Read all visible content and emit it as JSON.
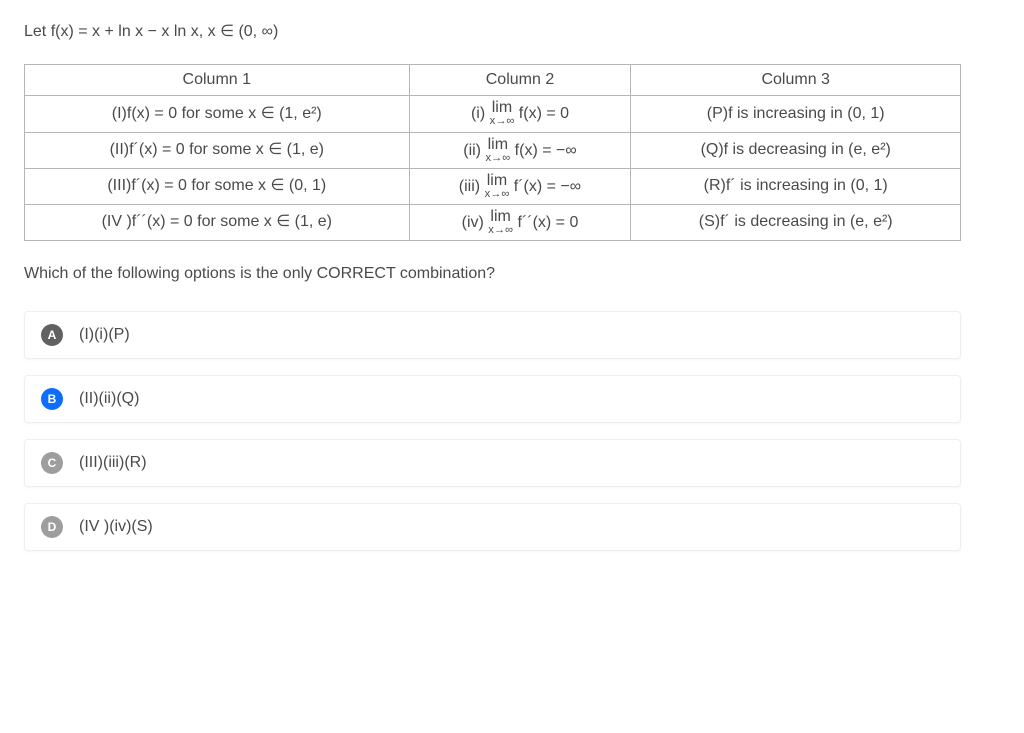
{
  "stem": "Let f(x) = x + ln x − x ln x,    x ∈ (0, ∞)",
  "table": {
    "headers": [
      "Column 1",
      "Column 2",
      "Column 3"
    ],
    "rows": [
      {
        "c1": "(I)f(x) = 0 for some x ∈ (1, e²)",
        "c2_html": "(i) <span class=\"limit\">lim<span class=\"under\">x→∞</span></span> f(x) = 0",
        "c3": "(P)f is increasing in (0, 1)"
      },
      {
        "c1": "(II)f´(x) = 0 for some x ∈ (1, e)",
        "c2_html": "(ii) <span class=\"limit\">lim<span class=\"under\">x→∞</span></span> f(x) = −∞",
        "c3": "(Q)f is decreasing in (e, e²)"
      },
      {
        "c1": "(III)f´(x) = 0 for some x ∈ (0, 1)",
        "c2_html": "(iii) <span class=\"limit\">lim<span class=\"under\">x→∞</span></span> f´(x) = −∞",
        "c3": "(R)f´ is increasing in (0, 1)"
      },
      {
        "c1": "(IV )f´´(x) = 0 for some x ∈ (1, e)",
        "c2_html": "(iv) <span class=\"limit\">lim<span class=\"under\">x→∞</span></span> f´´(x) = 0",
        "c3": "(S)f´ is decreasing in (e, e²)"
      }
    ]
  },
  "prompt": "Which of the following options is the only CORRECT combination?",
  "options": [
    {
      "letter": "A",
      "text": "(I)(i)(P)",
      "badge_bg": "#616161"
    },
    {
      "letter": "B",
      "text": "(II)(ii)(Q)",
      "badge_bg": "#0d6efd"
    },
    {
      "letter": "C",
      "text": "(III)(iii)(R)",
      "badge_bg": "#9e9e9e"
    },
    {
      "letter": "D",
      "text": "(IV )(iv)(S)",
      "badge_bg": "#9e9e9e"
    }
  ],
  "colors": {
    "text": "#4a4a4a",
    "table_border": "#b5b5b5",
    "option_border": "#eceff1"
  }
}
